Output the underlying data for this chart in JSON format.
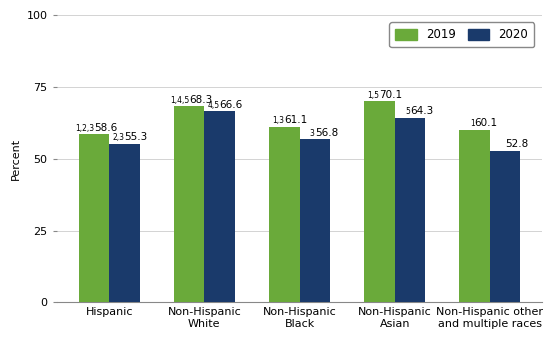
{
  "categories": [
    "Hispanic",
    "Non-Hispanic\nWhite",
    "Non-Hispanic\nBlack",
    "Non-Hispanic\nAsian",
    "Non-Hispanic other\nand multiple races"
  ],
  "values_2019": [
    58.6,
    68.3,
    61.1,
    70.1,
    60.1
  ],
  "values_2020": [
    55.3,
    66.6,
    56.8,
    64.3,
    52.8
  ],
  "labels_2019": [
    "1,2,3",
    "1,4,5",
    "1,3",
    "1,5",
    "1"
  ],
  "labels_2020": [
    "2,3",
    "4,5",
    "3",
    "5",
    ""
  ],
  "color_2019": "#6aaa3a",
  "color_2020": "#1a3a6b",
  "ylabel": "Percent",
  "ylim": [
    0,
    100
  ],
  "yticks": [
    0,
    25,
    50,
    75,
    100
  ],
  "legend_labels": [
    "2019",
    "2020"
  ],
  "bar_width": 0.32,
  "tick_fontsize": 8,
  "legend_fontsize": 8.5,
  "annot_fontsize": 7.5,
  "super_fontsize": 5.5
}
